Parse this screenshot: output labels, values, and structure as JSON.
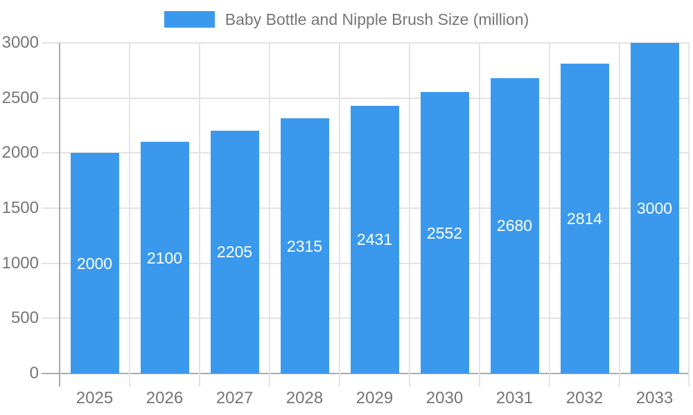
{
  "chart_data": {
    "type": "bar",
    "title": "Baby Bottle and Nipple Brush Size (million)",
    "legend": {
      "label": "Baby Bottle and Nipple Brush Size (million)",
      "position": "top-center"
    },
    "categories": [
      "2025",
      "2026",
      "2027",
      "2028",
      "2029",
      "2030",
      "2031",
      "2032",
      "2033"
    ],
    "values": [
      2000,
      2100,
      2205,
      2315,
      2431,
      2552,
      2680,
      2814,
      3000
    ],
    "value_labels_shown": true,
    "value_label_position": "inside-middle",
    "xlabel": "",
    "ylabel": "",
    "ylim": [
      0,
      3000
    ],
    "ytick_step": 500,
    "yticks": [
      "0",
      "500",
      "1000",
      "1500",
      "2000",
      "2500",
      "3000"
    ],
    "grid": "on",
    "colors": {
      "bar": "#3b99ed",
      "grid_light": "#e3e3e3",
      "axis": "#ababab",
      "tick_text": "#757575",
      "value_text": "#ffffff",
      "background": "#ffffff"
    }
  }
}
